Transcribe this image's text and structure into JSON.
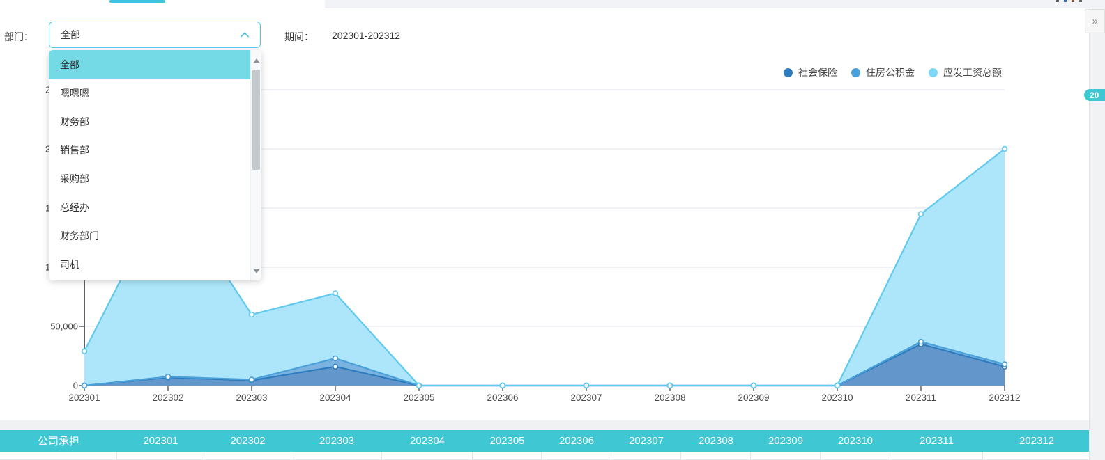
{
  "window": {
    "tab_underline_color": "#3ec4de"
  },
  "filters": {
    "department_label": "部门：",
    "department_value": "全部",
    "period_label": "期间：",
    "period_value": "202301-202312"
  },
  "dropdown": {
    "selected": "全部",
    "items": [
      "全部",
      "嗯嗯嗯",
      "财务部",
      "销售部",
      "采购部",
      "总经办",
      "财务部门",
      "司机"
    ],
    "selected_bg": "#73dae6"
  },
  "legend": {
    "items": [
      {
        "label": "社会保险",
        "color": "#2e7cbe"
      },
      {
        "label": "住房公积金",
        "color": "#4aa0d8"
      },
      {
        "label": "应发工资总额",
        "color": "#7dd7f6"
      }
    ]
  },
  "chart_data": {
    "type": "area",
    "title": "",
    "xlabel": "",
    "ylabel": "",
    "grid": true,
    "legend_position": "top-right",
    "x": [
      "202301",
      "202302",
      "202303",
      "202304",
      "202305",
      "202306",
      "202307",
      "202308",
      "202309",
      "202310",
      "202311",
      "202312"
    ],
    "ylim": [
      0,
      250000
    ],
    "yticks": [
      {
        "value": 0,
        "label": "0"
      },
      {
        "value": 50000,
        "label": "50,000"
      },
      {
        "value": 100000,
        "label": "100,000"
      },
      {
        "value": 150000,
        "label": "150,000"
      },
      {
        "value": 200000,
        "label": "200,000"
      },
      {
        "value": 250000,
        "label": "250,000"
      }
    ],
    "series": [
      {
        "name": "社会保险",
        "line_color": "#2e7cbe",
        "fill_color": "#6397cb",
        "values": [
          0,
          6800,
          4300,
          16000,
          0,
          0,
          0,
          0,
          0,
          0,
          35000,
          16000
        ]
      },
      {
        "name": "住房公积金",
        "line_color": "#4aa0d8",
        "fill_color": "#7bb3e0",
        "values": [
          0,
          7500,
          5000,
          23000,
          0,
          0,
          0,
          0,
          0,
          0,
          37000,
          18000
        ]
      },
      {
        "name": "应发工资总额",
        "line_color": "#5fc9f0",
        "fill_color": "#ade6fa",
        "values": [
          29000,
          168000,
          60000,
          78000,
          0,
          0,
          0,
          0,
          0,
          0,
          145000,
          200000
        ]
      }
    ]
  },
  "table": {
    "header_bg": "#3fc8d4",
    "first_header": "公司承担",
    "columns": [
      "202301",
      "202302",
      "202303",
      "202304",
      "202305",
      "202306",
      "202307",
      "202308",
      "202309",
      "202310",
      "202311",
      "202312"
    ]
  },
  "side_panel": {
    "collapse_label": "»",
    "badge_label": "20",
    "badge_color": "#3fc8d4"
  }
}
